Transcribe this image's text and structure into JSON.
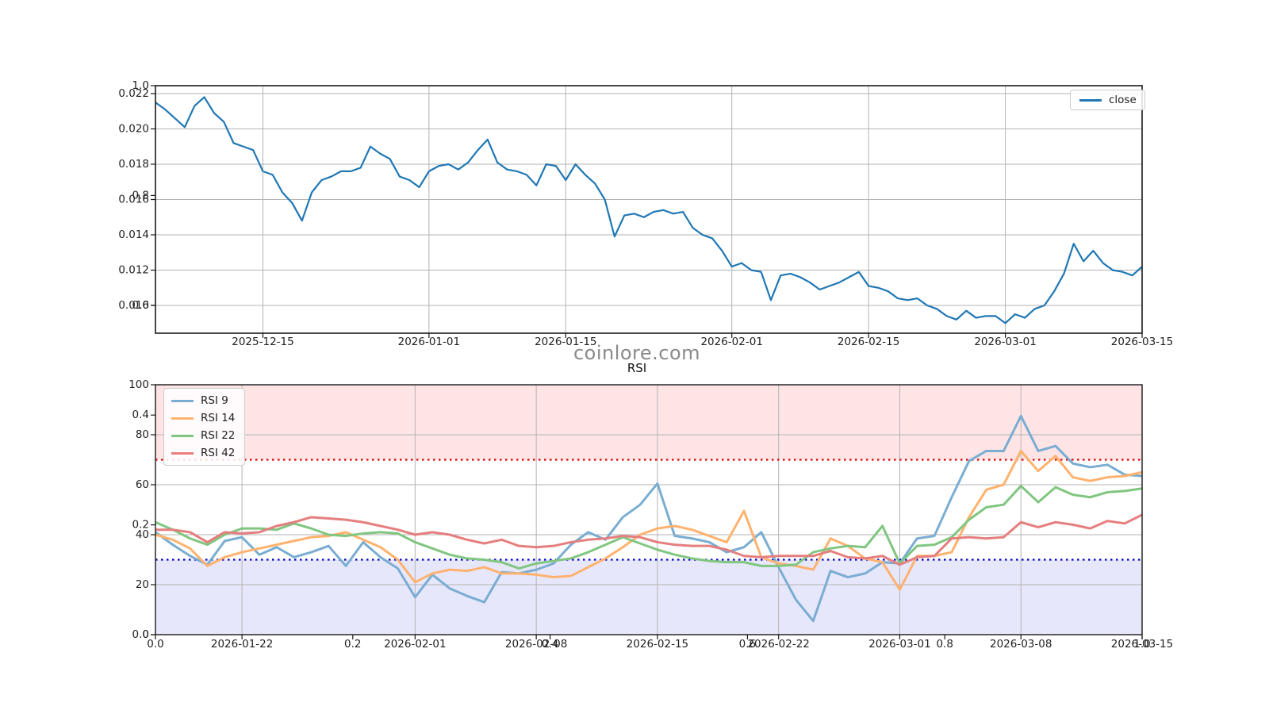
{
  "watermark": "coinlore.com",
  "colors": {
    "close_line": "#1f77b4",
    "rsi9": "#79add2",
    "rsi14": "#ffb26e",
    "rsi22": "#80c680",
    "rsi42": "#e67e7e",
    "grid": "#b3b3b3",
    "spine": "#1a1a1a",
    "overbought_line": "#dd0000",
    "oversold_line": "#0000c8",
    "overbought_band": "rgba(255,30,50,0.12)",
    "oversold_band": "rgba(70,70,230,0.13)",
    "tick_text": "#1f1f1f",
    "watermark_text": "#8a8a8a"
  },
  "overlay_axis": {
    "y_ticks": [
      "1.0",
      "0.8",
      "0.6",
      "0.4",
      "0.2",
      "0.0"
    ],
    "x_ticks": [
      "0.0",
      "0.2",
      "0.4",
      "0.6",
      "0.8",
      "1.0"
    ]
  },
  "chart_data": [
    {
      "type": "line",
      "name": "price",
      "title": "",
      "dates": {
        "start": "2025-12-04",
        "end": "2026-03-15",
        "freq": "daily"
      },
      "ylim": [
        0.0084,
        0.0226
      ],
      "grid": true,
      "legend_position": "upper right",
      "y_ticks": {
        "labels": [
          "0.022",
          "0.020",
          "0.018",
          "0.016",
          "0.014",
          "0.012",
          "0.010"
        ],
        "values": [
          0.022,
          0.02,
          0.018,
          0.016,
          0.014,
          0.012,
          0.01
        ]
      },
      "x_ticks": [
        {
          "label": "2025-12-15",
          "day": 11
        },
        {
          "label": "2026-01-01",
          "day": 28
        },
        {
          "label": "2026-01-15",
          "day": 42
        },
        {
          "label": "2026-02-01",
          "day": 59
        },
        {
          "label": "2026-02-15",
          "day": 73
        },
        {
          "label": "2026-03-01",
          "day": 87
        },
        {
          "label": "2026-03-15",
          "day": 101
        }
      ],
      "series": [
        {
          "name": "close",
          "color": "#1f77b4",
          "width": 2.2,
          "values": [
            0.0215,
            0.0211,
            0.0206,
            0.0201,
            0.0213,
            0.0218,
            0.0209,
            0.0204,
            0.0192,
            0.019,
            0.0188,
            0.0176,
            0.0174,
            0.0164,
            0.0158,
            0.0148,
            0.0164,
            0.0171,
            0.0173,
            0.0176,
            0.0176,
            0.0178,
            0.019,
            0.0186,
            0.0183,
            0.0173,
            0.0171,
            0.0167,
            0.0176,
            0.0179,
            0.018,
            0.0177,
            0.0181,
            0.0188,
            0.0194,
            0.0181,
            0.0177,
            0.0176,
            0.0174,
            0.0168,
            0.018,
            0.0179,
            0.0171,
            0.018,
            0.0174,
            0.0169,
            0.016,
            0.0139,
            0.0151,
            0.0152,
            0.015,
            0.0153,
            0.0154,
            0.0152,
            0.0153,
            0.0144,
            0.014,
            0.0138,
            0.0131,
            0.0122,
            0.0124,
            0.012,
            0.0119,
            0.0103,
            0.0117,
            0.0118,
            0.0116,
            0.0113,
            0.0109,
            0.0111,
            0.0113,
            0.0116,
            0.0119,
            0.0111,
            0.011,
            0.0108,
            0.0104,
            0.0103,
            0.0104,
            0.01,
            0.0098,
            0.0094,
            0.0092,
            0.0097,
            0.0093,
            0.0094,
            0.0094,
            0.009,
            0.0095,
            0.0093,
            0.0098,
            0.01,
            0.0108,
            0.0118,
            0.0135,
            0.0125,
            0.0131,
            0.0124,
            0.012,
            0.0119,
            0.0117,
            0.0122
          ]
        }
      ]
    },
    {
      "type": "line",
      "name": "rsi",
      "title": "RSI",
      "dates": {
        "start": "2026-01-17",
        "end": "2026-03-15",
        "freq": "daily"
      },
      "ylim": [
        0,
        100
      ],
      "grid": true,
      "legend_position": "upper left",
      "y_ticks": {
        "labels": [
          "100",
          "80",
          "60",
          "40",
          "20",
          "0"
        ],
        "values": [
          100,
          80,
          60,
          40,
          20,
          0
        ]
      },
      "x_ticks": [
        {
          "label": "2026-01-22",
          "day": 5
        },
        {
          "label": "2026-02-01",
          "day": 15
        },
        {
          "label": "2026-02-08",
          "day": 22
        },
        {
          "label": "2026-02-15",
          "day": 29
        },
        {
          "label": "2026-02-22",
          "day": 36
        },
        {
          "label": "2026-03-01",
          "day": 43
        },
        {
          "label": "2026-03-08",
          "day": 50
        },
        {
          "label": "2026-03-15",
          "day": 57
        }
      ],
      "bands": [
        {
          "name": "overbought",
          "from": 70,
          "to": 100,
          "color": "rgba(255,30,50,0.12)"
        },
        {
          "name": "oversold",
          "from": 0,
          "to": 30,
          "color": "rgba(70,70,230,0.13)"
        }
      ],
      "hlines": [
        {
          "name": "overbought-threshold",
          "y": 70,
          "color": "#dd0000"
        },
        {
          "name": "oversold-threshold",
          "y": 30,
          "color": "#0000c8"
        }
      ],
      "series": [
        {
          "name": "RSI 9",
          "color": "#79add2",
          "width": 3,
          "values": [
            41,
            36,
            31.5,
            28,
            37.5,
            39,
            32,
            35,
            31,
            33,
            35.5,
            27.5,
            37,
            31,
            26.5,
            15,
            24,
            18.5,
            15.5,
            13,
            25,
            24.5,
            26,
            28.5,
            36,
            41,
            38,
            47,
            52,
            60.5,
            39.5,
            38.5,
            37,
            33,
            35,
            41,
            27,
            14,
            5.5,
            25.5,
            23,
            24.5,
            29,
            28.5,
            38.5,
            39.5,
            55,
            69.5,
            73.5,
            73.5,
            87.5,
            73.5,
            75.5,
            68.5,
            67,
            68,
            64,
            63.5
          ]
        },
        {
          "name": "RSI 14",
          "color": "#ffb26e",
          "width": 3,
          "values": [
            40,
            38,
            34.5,
            27.5,
            31,
            33,
            34.5,
            36,
            37.5,
            39,
            39.5,
            41,
            38,
            35,
            30,
            21,
            24.5,
            26,
            25.5,
            27,
            24.5,
            24.5,
            24,
            23,
            23.5,
            27,
            30.5,
            35,
            40,
            42.5,
            43.5,
            42,
            39.5,
            37,
            49.5,
            31,
            28.5,
            27.5,
            26,
            38.5,
            35.5,
            30.5,
            29,
            18,
            31.5,
            31.5,
            33,
            47,
            58,
            60,
            73.5,
            65.5,
            71.5,
            63,
            61.5,
            63,
            63.5,
            65
          ]
        },
        {
          "name": "RSI 22",
          "color": "#80c680",
          "width": 3,
          "values": [
            45,
            42,
            38.5,
            36,
            40,
            42.5,
            42.5,
            42,
            44.5,
            42.5,
            40,
            39.5,
            40.5,
            41,
            40.5,
            37,
            34.5,
            32,
            30.5,
            30,
            29,
            26.5,
            28.5,
            29.5,
            30.5,
            33,
            36,
            39,
            36.5,
            34,
            32,
            30.5,
            29.5,
            29,
            29,
            27.5,
            27.5,
            28,
            33,
            34.5,
            35.5,
            35,
            43.5,
            28.5,
            35.5,
            36,
            39,
            46,
            51,
            52,
            59.5,
            53,
            59,
            56,
            55,
            57,
            57.5,
            58.5
          ]
        },
        {
          "name": "RSI 42",
          "color": "#e67e7e",
          "width": 3,
          "values": [
            42,
            42,
            41,
            37,
            41,
            40.5,
            41,
            43.5,
            45,
            47,
            46.5,
            46,
            45,
            43.5,
            42,
            40,
            41,
            40,
            38,
            36.5,
            38,
            35.5,
            35,
            35.5,
            37,
            38,
            38.5,
            39.5,
            39,
            37,
            36,
            35.5,
            35.5,
            34,
            31.5,
            31,
            31.5,
            31.5,
            31.5,
            33.5,
            31,
            30.5,
            31.5,
            28,
            31,
            31.5,
            38.5,
            39,
            38.5,
            39,
            45,
            43,
            45,
            44,
            42.5,
            45.5,
            44.5,
            48
          ]
        }
      ]
    }
  ]
}
